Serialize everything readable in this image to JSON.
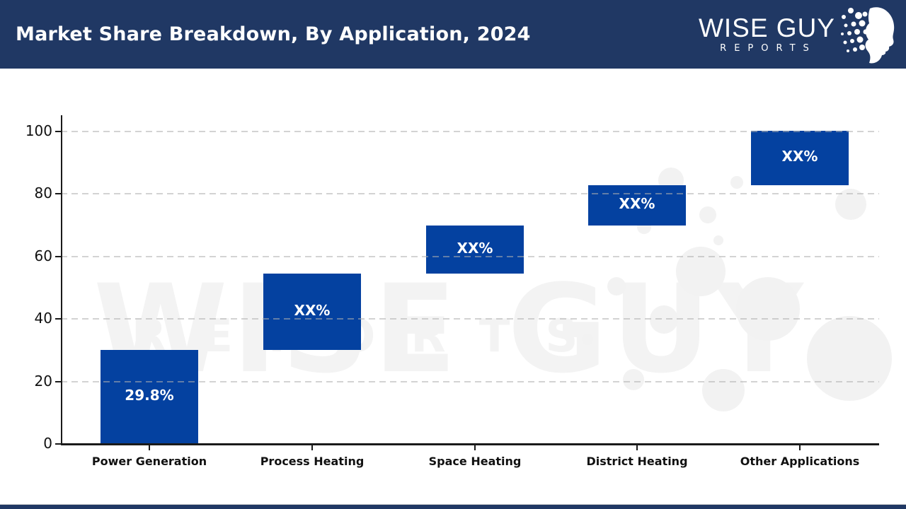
{
  "header": {
    "title": "Market Share Breakdown, By Application, 2024",
    "logo_line1": "WISE GUY",
    "logo_line2": "REPORTS"
  },
  "watermark": {
    "line1": "WISE GUY",
    "line2": "REPORTS"
  },
  "chart_data": {
    "type": "bar",
    "subtype": "waterfall",
    "title": "Market Share Breakdown, By Application, 2024",
    "categories": [
      "Power Generation",
      "Process Heating",
      "Space Heating",
      "District Heating",
      "Other Applications"
    ],
    "segments": [
      {
        "category": "Power Generation",
        "start": 0,
        "end": 29.8,
        "value": 29.8,
        "label": "29.8%"
      },
      {
        "category": "Process Heating",
        "start": 29.8,
        "end": 54.2,
        "value": 24.4,
        "label": "XX%"
      },
      {
        "category": "Space Heating",
        "start": 54.2,
        "end": 69.6,
        "value": 15.4,
        "label": "XX%"
      },
      {
        "category": "District Heating",
        "start": 69.6,
        "end": 82.5,
        "value": 12.9,
        "label": "XX%"
      },
      {
        "category": "Other Applications",
        "start": 82.5,
        "end": 100,
        "value": 17.5,
        "label": "XX%"
      }
    ],
    "yticks": [
      0,
      20,
      40,
      60,
      80,
      100
    ],
    "ylim": [
      0,
      105
    ],
    "xlabel": "",
    "ylabel": "",
    "grid": "horizontal-dashed",
    "legend": "none",
    "bar_color": "#0441a0",
    "bar_label_color": "#ffffff"
  },
  "colors": {
    "header_bg": "#203864",
    "footer_bg": "#203864",
    "bar": "#0441a0",
    "axis": "#1a1a1a",
    "grid": "#d8d8d8",
    "watermark": "#f2f2f2"
  }
}
